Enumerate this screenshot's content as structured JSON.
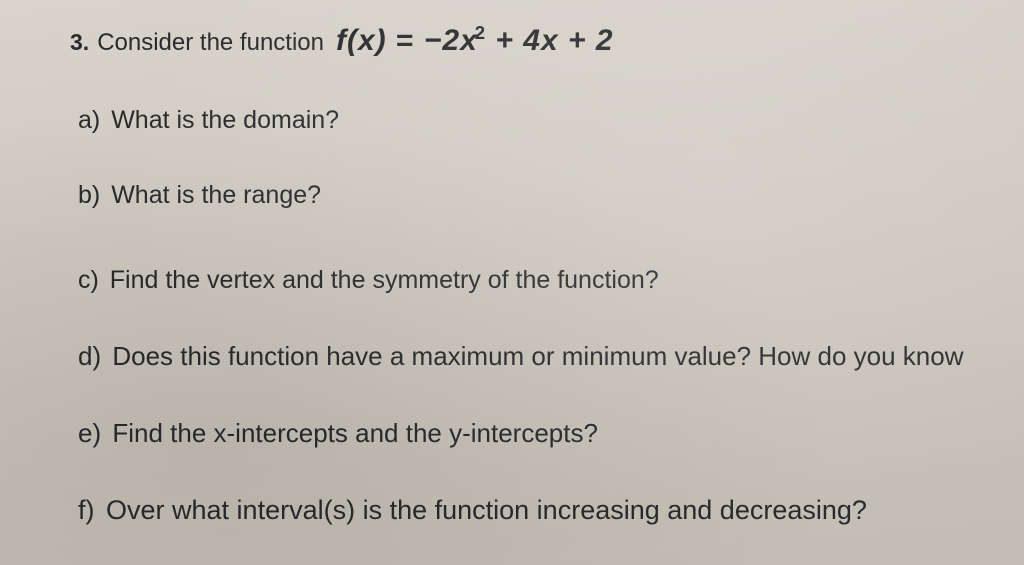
{
  "question": {
    "number": "3.",
    "prompt_prefix": "Consider the function",
    "formula_lhs": "f(x)",
    "formula_eq": "=",
    "formula_rhs_terms": [
      "−2x",
      "2",
      " + 4x + 2"
    ]
  },
  "subparts": {
    "a": {
      "label": "a)",
      "text": "What is the domain?"
    },
    "b": {
      "label": "b)",
      "text": "What is the range?"
    },
    "c": {
      "label": "c)",
      "text": "Find the vertex and the symmetry of the function?"
    },
    "d": {
      "label": "d)",
      "text": "Does this function have a maximum or minimum value? How do you know"
    },
    "e": {
      "label": "e)",
      "text": "Find the x-intercepts and the y-intercepts?"
    },
    "f": {
      "label": "f)",
      "text": "Over what interval(s) is the function increasing and decreasing?"
    }
  },
  "style": {
    "text_color": "#2a2a2a",
    "bg_top": "#d8d4cc",
    "bg_bottom": "#c2bdb3",
    "font_family": "Arial"
  }
}
